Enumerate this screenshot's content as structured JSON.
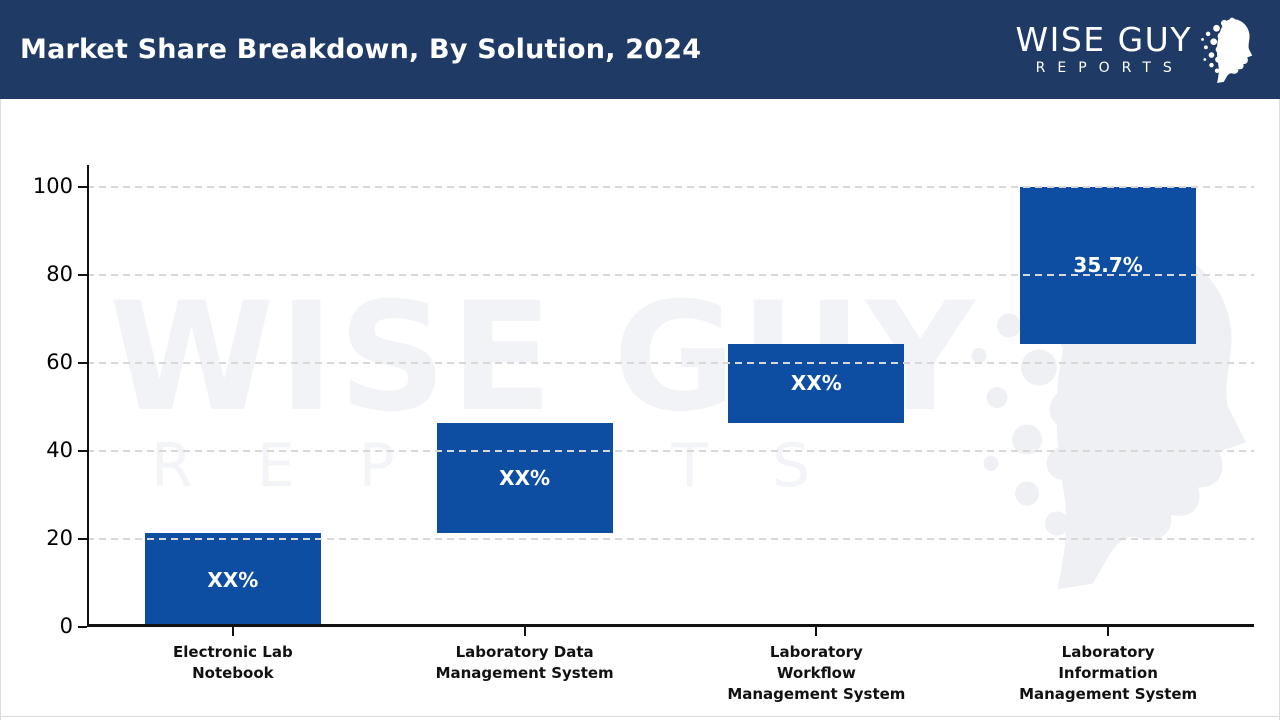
{
  "header": {
    "title": "Market Share Breakdown, By Solution, 2024",
    "logo": {
      "primary": "WISE GUY",
      "secondary": "REPORTS"
    }
  },
  "watermark": {
    "primary": "WISE GUY",
    "secondary": "REPORTS"
  },
  "chart_data": {
    "type": "bar",
    "subtype": "floating-waterfall",
    "title": "Market Share Breakdown, By Solution, 2024",
    "categories": [
      [
        "Electronic Lab",
        "Notebook"
      ],
      [
        "Laboratory Data",
        "Management System"
      ],
      [
        "Laboratory",
        "Workflow",
        "Management System"
      ],
      [
        "Laboratory",
        "Information",
        "Management System"
      ]
    ],
    "segments": [
      {
        "from": 0,
        "to": 21.4,
        "label": "XX%"
      },
      {
        "from": 21.4,
        "to": 46.4,
        "label": "XX%"
      },
      {
        "from": 46.4,
        "to": 64.3,
        "label": "XX%"
      },
      {
        "from": 64.3,
        "to": 100,
        "label": "35.7%"
      }
    ],
    "ylim": [
      0,
      100
    ],
    "yticks": [
      0,
      20,
      40,
      60,
      80,
      100
    ],
    "grid": {
      "horizontal": true,
      "style": "dashed",
      "color": "#d8d8d8"
    },
    "bar_color": "#0d4da2",
    "bar_label_color": "#ffffff",
    "xlabel": "",
    "ylabel": "",
    "legend": null
  },
  "colors": {
    "header_bg": "#203a66",
    "bar": "#0d4da2",
    "axis": "#111111",
    "grid": "#d8d8d8",
    "watermark": "#f2f3f6",
    "bottom_rule": "#dcdcdc"
  }
}
